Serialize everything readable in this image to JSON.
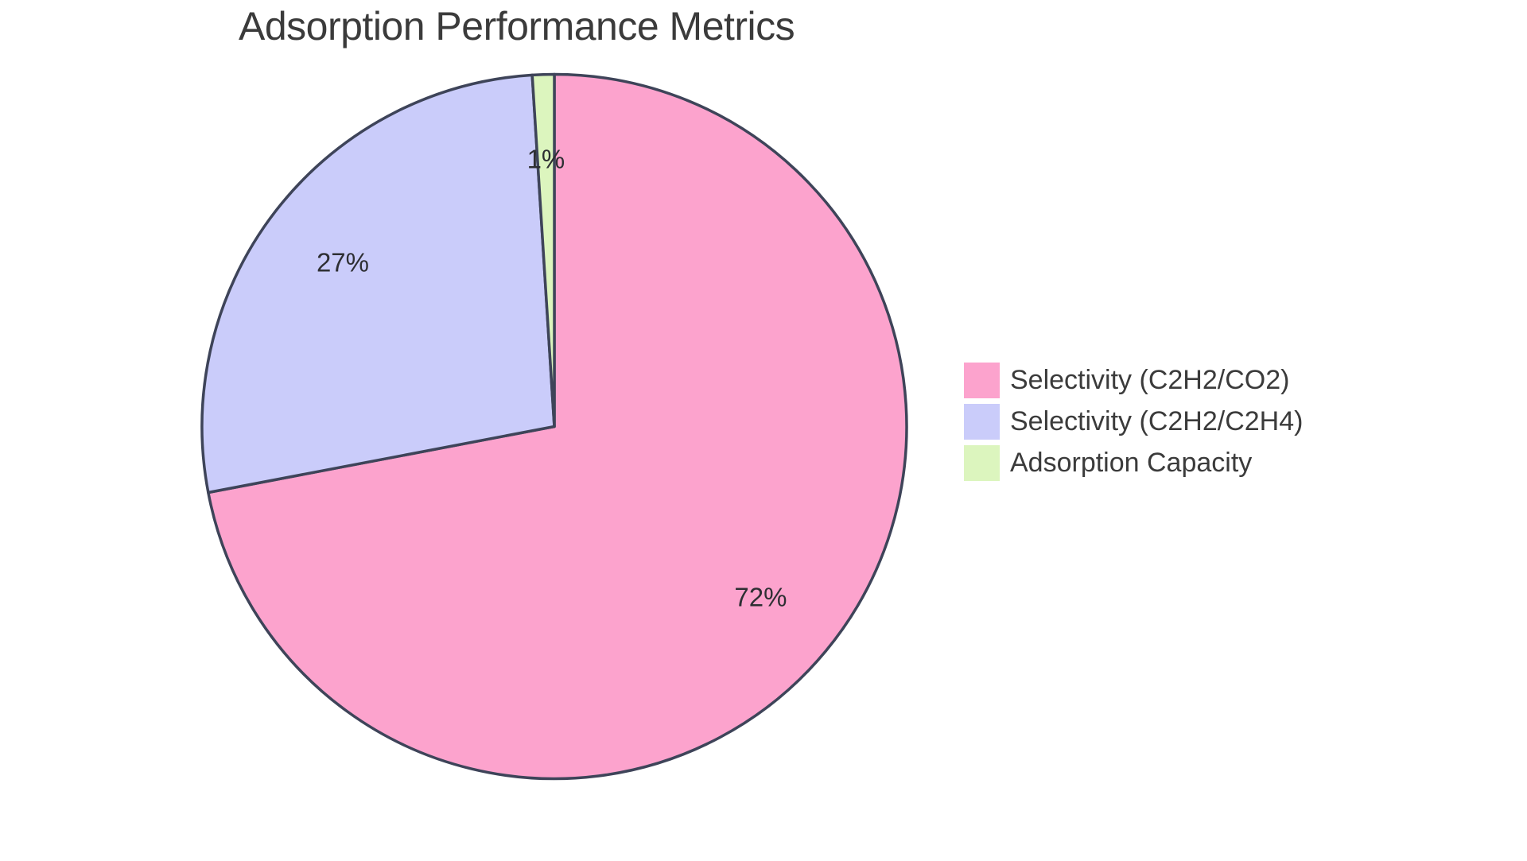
{
  "title": "Adsorption Performance Metrics",
  "chart_data": {
    "type": "pie",
    "title": "Adsorption Performance Metrics",
    "labels": [
      "Selectivity (C2H2/CO2)",
      "Selectivity (C2H2/C2H4)",
      "Adsorption Capacity"
    ],
    "values": [
      72,
      27,
      1
    ],
    "slice_labels": [
      "72%",
      "27%",
      "1%"
    ],
    "colors": [
      "#FCA3CD",
      "#CACCFA",
      "#DCF5BE"
    ],
    "border_color": "#3E4459",
    "start_angle_deg": 0,
    "direction": "clockwise",
    "legend_position": "right",
    "label_position": "inside"
  },
  "legend": {
    "items": [
      {
        "label": "Selectivity (C2H2/CO2)",
        "color": "#FCA3CD"
      },
      {
        "label": "Selectivity (C2H2/C2H4)",
        "color": "#CACCFA"
      },
      {
        "label": "Adsorption Capacity",
        "color": "#DCF5BE"
      }
    ]
  },
  "colors": {
    "background": "#FFFFFF",
    "title_text": "#3B3B3B",
    "slice_label_text": "#2E2F33",
    "legend_text": "#3B3B3B"
  }
}
